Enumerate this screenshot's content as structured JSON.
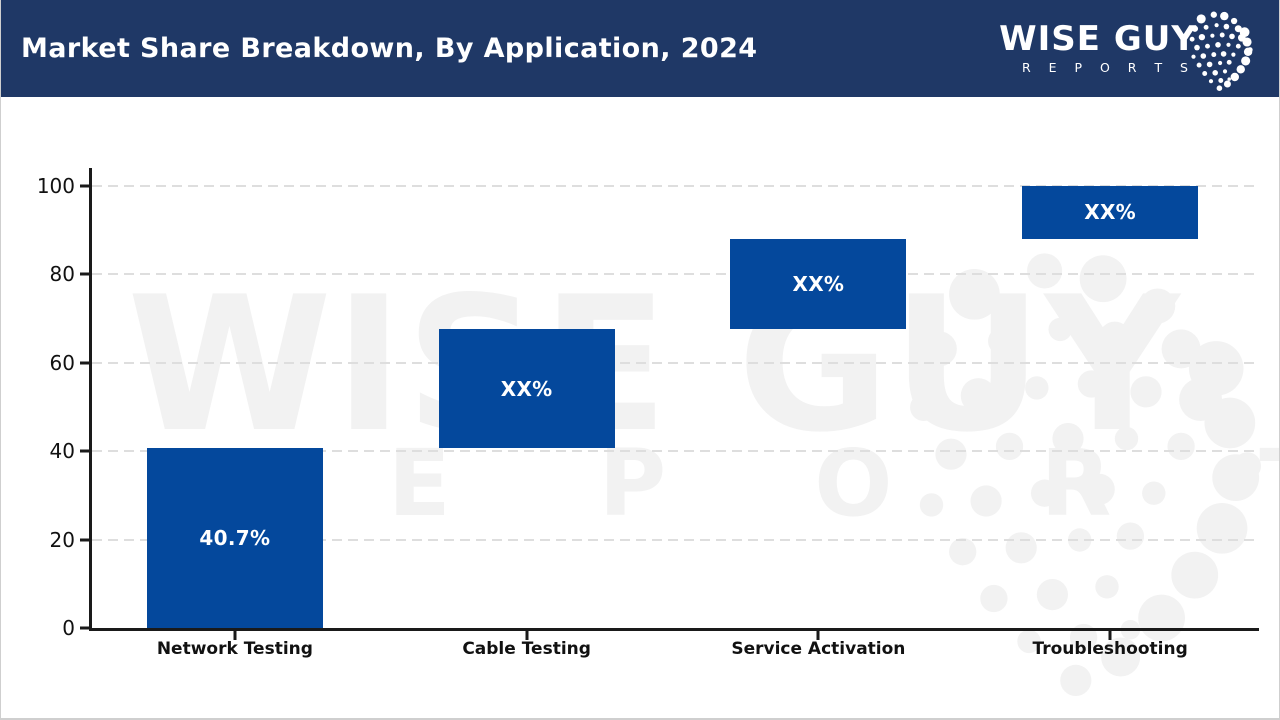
{
  "header": {
    "title": "Market Share Breakdown, By Application, 2024",
    "logo": {
      "name": "WISE GUY",
      "sub": "R E P O R T S"
    }
  },
  "watermark": {
    "line1": "WISE GUY",
    "line2": "R E P O R T S"
  },
  "colors": {
    "header_bg": "#1F3866",
    "bar": "#04489C",
    "grid": "#DEDEDE",
    "axis": "#1A1A1A",
    "watermark": "#F2F2F2",
    "bar_label": "#FFFFFF"
  },
  "chart_data": {
    "type": "bar",
    "subtype": "waterfall",
    "title": "Market Share Breakdown, By Application, 2024",
    "categories": [
      "Network Testing",
      "Cable Testing",
      "Service Activation",
      "Troubleshooting"
    ],
    "series": [
      {
        "name": "Market Share (%)",
        "segments": [
          {
            "category": "Network Testing",
            "start": 0,
            "end": 40.7,
            "label": "40.7%"
          },
          {
            "category": "Cable Testing",
            "start": 40.7,
            "end": 67.5,
            "label": "XX%"
          },
          {
            "category": "Service Activation",
            "start": 67.5,
            "end": 87.8,
            "label": "XX%"
          },
          {
            "category": "Troubleshooting",
            "start": 87.8,
            "end": 100,
            "label": "XX%"
          }
        ]
      }
    ],
    "xlabel": "",
    "ylabel": "",
    "yticks": [
      0,
      20,
      40,
      60,
      80,
      100
    ],
    "ylim": [
      0,
      105
    ],
    "grid": "horizontal-dashed",
    "legend": "none"
  }
}
